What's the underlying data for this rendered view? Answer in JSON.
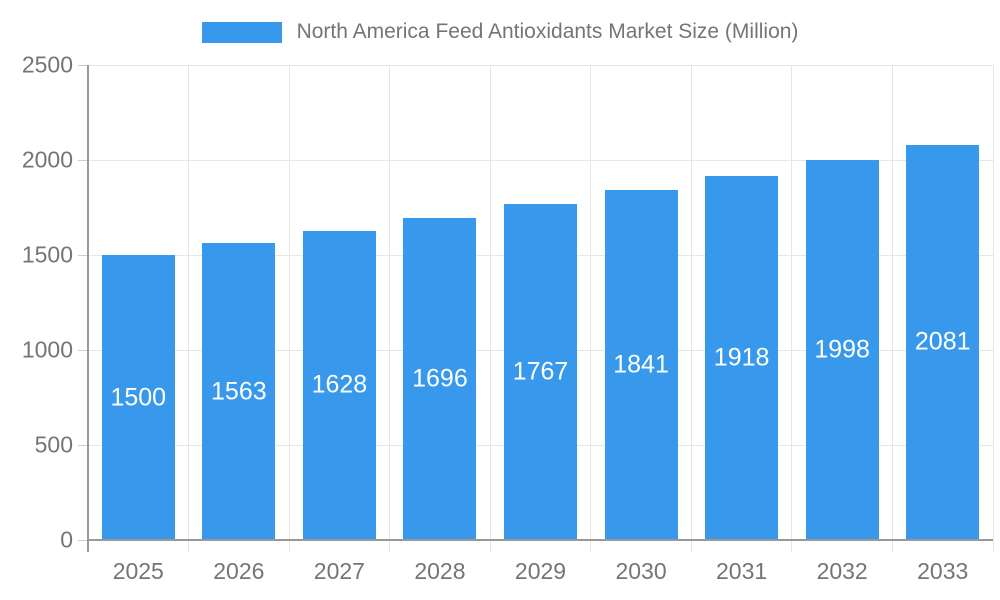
{
  "legend": {
    "label": "North America Feed Antioxidants Market Size (Million)"
  },
  "colors": {
    "bar": "#3899EC",
    "axis_line": "#999999",
    "gridline": "#E6E6E6",
    "tick": "#CCCCCC",
    "axis_text": "#757575",
    "bar_label_text": "#FFFFFF",
    "background": "#FFFFFF"
  },
  "chart_data": {
    "type": "bar",
    "title": "North America Feed Antioxidants Market Size (Million)",
    "categories": [
      "2025",
      "2026",
      "2027",
      "2028",
      "2029",
      "2030",
      "2031",
      "2032",
      "2033"
    ],
    "values": [
      1500,
      1563,
      1628,
      1696,
      1767,
      1841,
      1918,
      1998,
      2081
    ],
    "xlabel": "",
    "ylabel": "",
    "ylim": [
      0,
      2500
    ],
    "yticks": [
      0,
      500,
      1000,
      1500,
      2000,
      2500
    ],
    "grid": true,
    "legend_position": "top",
    "bar_value_labels": "inside-center"
  }
}
